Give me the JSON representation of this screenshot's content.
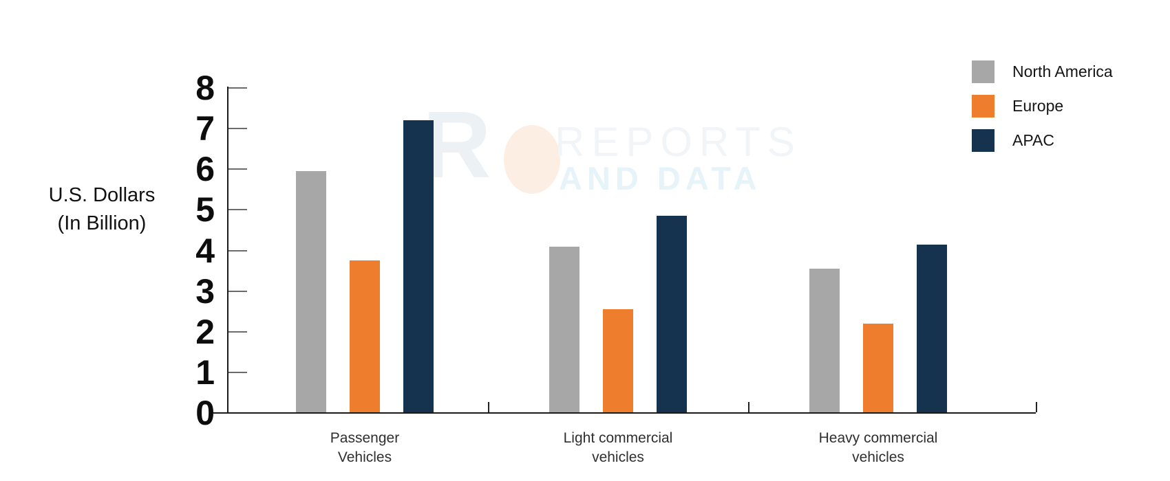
{
  "chart_data": {
    "type": "bar",
    "title": "",
    "ylabel_line1": "U.S. Dollars",
    "ylabel_line2": "(In Billion)",
    "categories": [
      {
        "line1": "Passenger",
        "line2": "Vehicles"
      },
      {
        "line1": "Light commercial",
        "line2": "vehicles"
      },
      {
        "line1": "Heavy commercial",
        "line2": "vehicles"
      }
    ],
    "series": [
      {
        "name": "North America",
        "color": "#A8A7A7",
        "values": [
          5.95,
          4.1,
          3.55
        ]
      },
      {
        "name": "Europe",
        "color": "#EF7D2E",
        "values": [
          3.75,
          2.55,
          2.2
        ]
      },
      {
        "name": "APAC",
        "color": "#15324E",
        "values": [
          7.2,
          4.85,
          4.15
        ]
      }
    ],
    "ylim": [
      0,
      8
    ],
    "yticks": [
      0,
      1,
      2,
      3,
      4,
      5,
      6,
      7,
      8
    ],
    "grid": false,
    "legend_position": "top-right"
  },
  "watermark": {
    "logo_letter": "R",
    "line1": "REPORTS",
    "line2": "AND DATA"
  }
}
